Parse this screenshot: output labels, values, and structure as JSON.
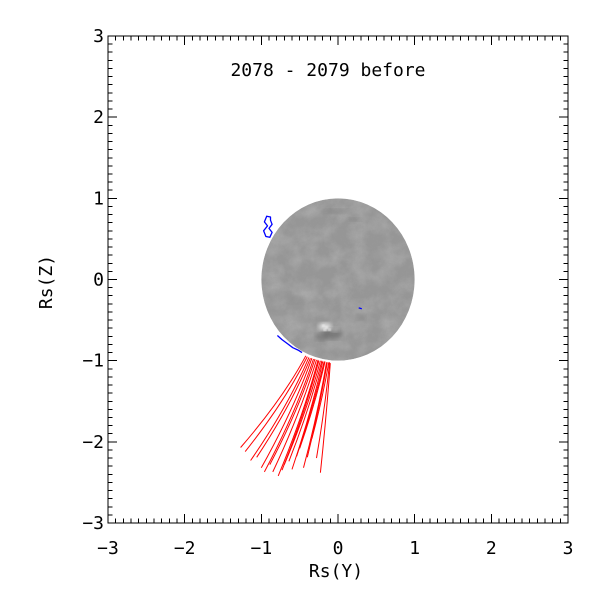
{
  "window": {
    "background": "#ffffff"
  },
  "chart_data": {
    "type": "line",
    "title": "2078 - 2079 before",
    "xlabel": "Rs(Y)",
    "ylabel": "Rs(Z)",
    "xlim": [
      -3,
      3
    ],
    "ylim": [
      -3,
      3
    ],
    "x_ticks": [
      -3,
      -2,
      -1,
      0,
      1,
      2,
      3
    ],
    "y_ticks": [
      -3,
      -2,
      -1,
      0,
      1,
      2,
      3
    ],
    "minor_tick_step": 0.1,
    "grid": false,
    "legend": "none",
    "axis_color": "#000000",
    "sun_disk": {
      "center": [
        0,
        0
      ],
      "radius": 1.0,
      "base_color": "#989898",
      "features": [
        {
          "y": -0.07,
          "z": -0.67,
          "rx": 0.13,
          "rz": 0.07,
          "color": "#5a5a5a",
          "opacity": 0.5
        },
        {
          "y": -0.22,
          "z": -0.71,
          "rx": 0.08,
          "rz": 0.05,
          "color": "#636363",
          "opacity": 0.4
        },
        {
          "y": -0.17,
          "z": -0.58,
          "rx": 0.09,
          "rz": 0.05,
          "color": "#ebebeb",
          "opacity": 0.8
        },
        {
          "y": -0.04,
          "z": -0.62,
          "rx": 0.05,
          "rz": 0.03,
          "color": "#e0e0e0",
          "opacity": 0.5
        },
        {
          "y": -0.02,
          "z": 0.84,
          "rx": 0.18,
          "rz": 0.03,
          "color": "#6e6e6e",
          "opacity": 0.35
        },
        {
          "y": 0.22,
          "z": 0.74,
          "rx": 0.1,
          "rz": 0.025,
          "color": "#787878",
          "opacity": 0.3
        },
        {
          "y": 0.3,
          "z": -0.46,
          "rx": 0.06,
          "rz": 0.04,
          "color": "#7a7a7a",
          "opacity": 0.35
        },
        {
          "y": -0.55,
          "z": -0.25,
          "rx": 0.1,
          "rz": 0.05,
          "color": "#8a8a8a",
          "opacity": 0.3
        },
        {
          "y": 0.55,
          "z": 0.3,
          "rx": 0.12,
          "rz": 0.06,
          "color": "#a6a6a6",
          "opacity": 0.3
        }
      ],
      "speckles": {
        "color": "#f2f2f2",
        "points": [
          [
            -0.19,
            -0.57
          ],
          [
            -0.15,
            -0.59
          ],
          [
            -0.11,
            -0.62
          ],
          [
            -0.17,
            -0.62
          ]
        ]
      }
    },
    "field_lines": {
      "color": "#ff0000",
      "width": 1,
      "lines": [
        [
          [
            -0.42,
            -0.94
          ],
          [
            -0.72,
            -1.47
          ],
          [
            -1.27,
            -2.07
          ]
        ],
        [
          [
            -0.4,
            -0.95
          ],
          [
            -0.69,
            -1.5
          ],
          [
            -1.21,
            -2.12
          ]
        ],
        [
          [
            -0.38,
            -0.96
          ],
          [
            -0.65,
            -1.56
          ],
          [
            -1.14,
            -2.23
          ]
        ],
        [
          [
            -0.36,
            -0.97
          ],
          [
            -0.61,
            -1.55
          ],
          [
            -1.06,
            -2.19
          ]
        ],
        [
          [
            -0.34,
            -0.97
          ],
          [
            -0.58,
            -1.61
          ],
          [
            -1.0,
            -2.32
          ]
        ],
        [
          [
            -0.32,
            -0.98
          ],
          [
            -0.55,
            -1.64
          ],
          [
            -0.96,
            -2.37
          ]
        ],
        [
          [
            -0.3,
            -0.98
          ],
          [
            -0.51,
            -1.6
          ],
          [
            -0.89,
            -2.28
          ]
        ],
        [
          [
            -0.28,
            -0.99
          ],
          [
            -0.49,
            -1.65
          ],
          [
            -0.85,
            -2.37
          ]
        ],
        [
          [
            -0.26,
            -0.99
          ],
          [
            -0.45,
            -1.67
          ],
          [
            -0.78,
            -2.42
          ]
        ],
        [
          [
            -0.25,
            -1.0
          ],
          [
            -0.43,
            -1.64
          ],
          [
            -0.73,
            -2.35
          ]
        ],
        [
          [
            -0.23,
            -1.0
          ],
          [
            -0.4,
            -1.61
          ],
          [
            -0.7,
            -2.28
          ]
        ],
        [
          [
            -0.21,
            -1.0
          ],
          [
            -0.37,
            -1.59
          ],
          [
            -0.64,
            -2.24
          ]
        ],
        [
          [
            -0.2,
            -1.01
          ],
          [
            -0.35,
            -1.64
          ],
          [
            -0.6,
            -2.34
          ]
        ],
        [
          [
            -0.18,
            -1.01
          ],
          [
            -0.32,
            -1.56
          ],
          [
            -0.54,
            -2.18
          ]
        ],
        [
          [
            -0.17,
            -1.01
          ],
          [
            -0.29,
            -1.51
          ],
          [
            -0.5,
            -2.08
          ]
        ],
        [
          [
            -0.15,
            -1.02
          ],
          [
            -0.26,
            -1.64
          ],
          [
            -0.45,
            -2.32
          ]
        ],
        [
          [
            -0.14,
            -1.02
          ],
          [
            -0.24,
            -1.57
          ],
          [
            -0.4,
            -2.19
          ]
        ],
        [
          [
            -0.12,
            -1.02
          ],
          [
            -0.2,
            -1.46
          ],
          [
            -0.34,
            -1.96
          ]
        ],
        [
          [
            -0.11,
            -1.02
          ],
          [
            -0.17,
            -1.58
          ],
          [
            -0.28,
            -2.2
          ]
        ],
        [
          [
            -0.1,
            -1.03
          ],
          [
            -0.15,
            -1.67
          ],
          [
            -0.23,
            -2.38
          ]
        ]
      ]
    },
    "contours": {
      "color": "#0000ff",
      "width": 1.3,
      "paths": [
        {
          "closed": true,
          "points": [
            [
              -0.88,
              0.77
            ],
            [
              -0.93,
              0.78
            ],
            [
              -0.96,
              0.71
            ],
            [
              -0.92,
              0.66
            ],
            [
              -0.97,
              0.6
            ],
            [
              -0.94,
              0.53
            ],
            [
              -0.89,
              0.52
            ],
            [
              -0.86,
              0.58
            ],
            [
              -0.9,
              0.63
            ],
            [
              -0.86,
              0.68
            ],
            [
              -0.88,
              0.73
            ]
          ]
        },
        {
          "closed": false,
          "points": [
            [
              -0.79,
              -0.69
            ],
            [
              -0.73,
              -0.74
            ],
            [
              -0.66,
              -0.79
            ],
            [
              -0.59,
              -0.84
            ],
            [
              -0.52,
              -0.87
            ],
            [
              -0.47,
              -0.9
            ]
          ]
        },
        {
          "closed": false,
          "points": [
            [
              0.27,
              -0.35
            ],
            [
              0.31,
              -0.36
            ]
          ]
        }
      ]
    }
  }
}
